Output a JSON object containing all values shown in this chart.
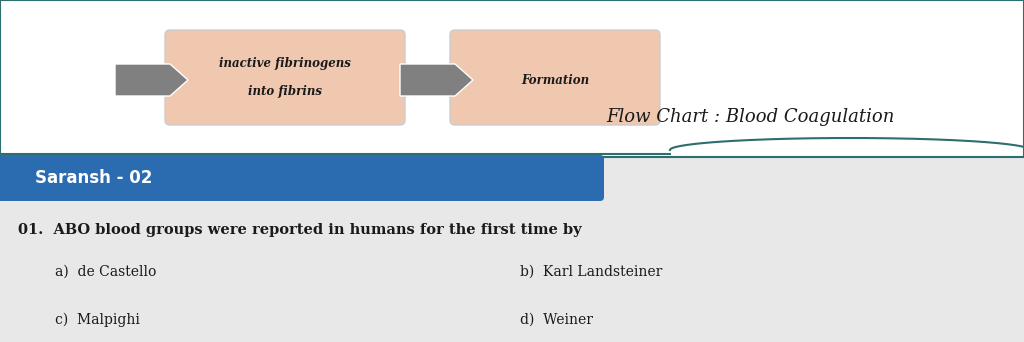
{
  "bg_color": "#e8e8e8",
  "top_box_color": "#f0c8b0",
  "top_box_text1": "inactive fibrinogens",
  "top_box_text2": "into fibrins",
  "right_box_color": "#f0c8b0",
  "right_box_text": "Formation",
  "flow_chart_title": "Flow Chart : Blood Coagulation",
  "banner_color": "#2b6cb0",
  "banner_text": "Saransh - 02",
  "banner_text_color": "#ffffff",
  "question_text": "01.  ABO blood groups were reported in humans for the first time by",
  "question_text_color": "#1a1a1a",
  "options": [
    {
      "label": "a)",
      "text": "de Castello"
    },
    {
      "label": "b)",
      "text": "Karl Landsteiner"
    },
    {
      "label": "c)",
      "text": "Malpighi"
    },
    {
      "label": "d)",
      "text": "Weiner"
    }
  ],
  "option_text_color": "#1a1a1a",
  "arrow_color": "#808080",
  "border_color": "#2d6e6e",
  "left_arrow_color": "#808080"
}
